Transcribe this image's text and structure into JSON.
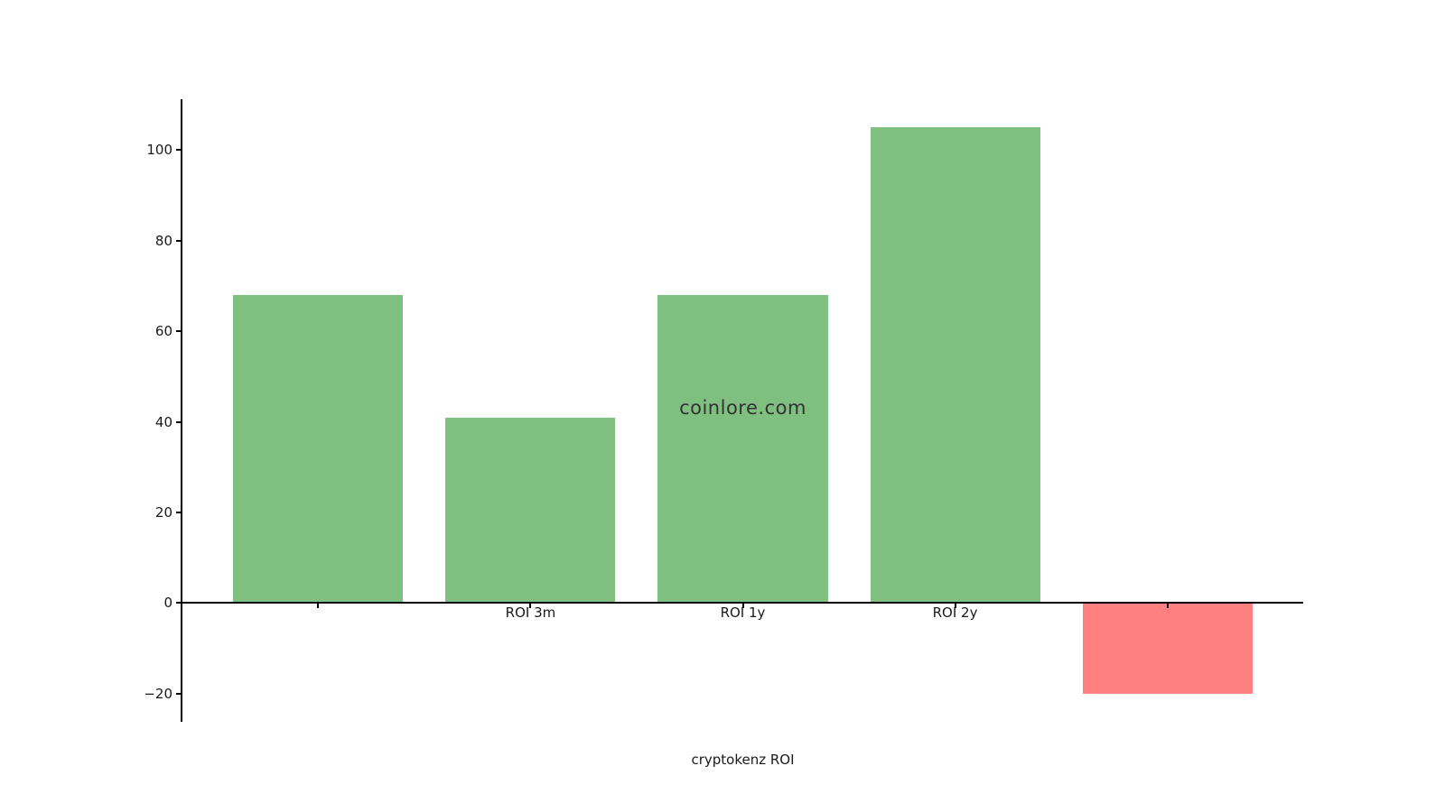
{
  "chart_data": {
    "type": "bar",
    "title": "",
    "xlabel": "cryptokenz ROI",
    "ylabel": "",
    "watermark": "coinlore.com",
    "categories": [
      "",
      "ROI 3m",
      "ROI 1y",
      "ROI 2y",
      ""
    ],
    "values": [
      68,
      41,
      68,
      105,
      -20
    ],
    "colors": [
      "#7fbf7f",
      "#7fbf7f",
      "#7fbf7f",
      "#7fbf7f",
      "#ff8080"
    ],
    "positive_color": "#7fbf7f",
    "negative_color": "#ff8080",
    "axis_color": "#000000",
    "text_color": "#1a1a1a",
    "watermark_color": "#333333",
    "yticks": [
      -20,
      0,
      20,
      40,
      60,
      80,
      100
    ],
    "ylim": [
      -26.25,
      111.25
    ],
    "xlim": [
      -0.64,
      4.64
    ],
    "bar_width_units": 0.8,
    "grid": false,
    "legend": "none"
  }
}
